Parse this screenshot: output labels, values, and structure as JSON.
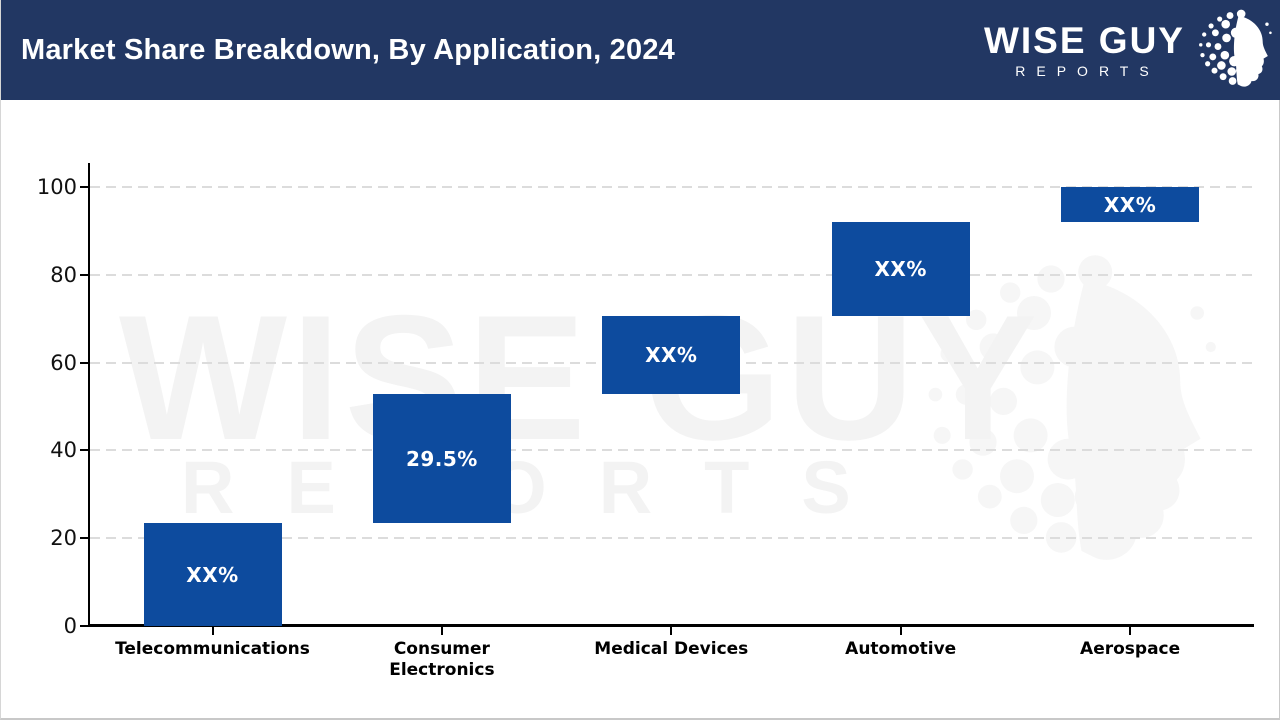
{
  "header": {
    "title": "Market Share Breakdown, By Application, 2024",
    "background_color": "#223763",
    "logo": {
      "name": "WISE GUY",
      "sub": "REPORTS"
    }
  },
  "watermark": {
    "line1": "WISE GUY",
    "line2": "REPORTS"
  },
  "chart_data": {
    "type": "bar",
    "subtype": "waterfall",
    "title": "Market Share Breakdown, By Application, 2024",
    "xlabel": "",
    "ylabel": "",
    "ylim": [
      0,
      100
    ],
    "yticks": [
      0,
      20,
      40,
      60,
      80,
      100
    ],
    "grid": "horizontal-dashed",
    "legend": "none",
    "bar_color": "#0d4b9e",
    "bar_label_color": "#ffffff",
    "categories": [
      "Telecommunications",
      "Consumer\nElectronics",
      "Medical Devices",
      "Automotive",
      "Aerospace"
    ],
    "segments": [
      {
        "category": "Telecommunications",
        "start": 0,
        "end": 23.4,
        "label": "XX%"
      },
      {
        "category": "Consumer Electronics",
        "start": 23.4,
        "end": 52.9,
        "label": "29.5%"
      },
      {
        "category": "Medical Devices",
        "start": 52.9,
        "end": 70.6,
        "label": "XX%"
      },
      {
        "category": "Automotive",
        "start": 70.6,
        "end": 92.0,
        "label": "XX%"
      },
      {
        "category": "Aerospace",
        "start": 92.0,
        "end": 100.0,
        "label": "XX%"
      }
    ]
  }
}
